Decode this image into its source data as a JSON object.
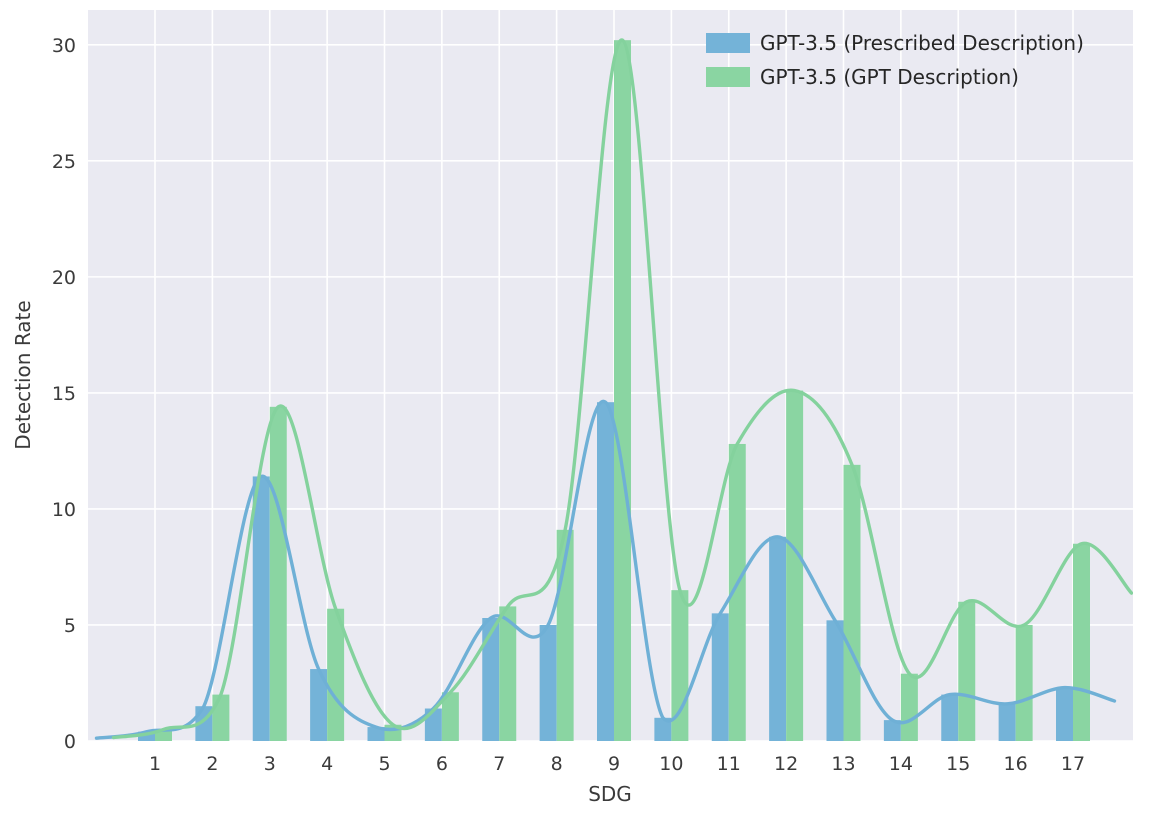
{
  "style": {
    "plot_bg": "#eaeaf2",
    "grid_color": "#ffffff",
    "text_color": "#3b3b3b",
    "legend_text_color": "#262626"
  },
  "chart_data": {
    "type": "bar",
    "overlay": "kde-smooth-curves",
    "title": "",
    "xlabel": "SDG",
    "ylabel": "Detection Rate",
    "categories": [
      "1",
      "2",
      "3",
      "4",
      "5",
      "6",
      "7",
      "8",
      "9",
      "10",
      "11",
      "12",
      "13",
      "14",
      "15",
      "16",
      "17"
    ],
    "series": [
      {
        "name": "GPT-3.5 (Prescribed Description)",
        "color": "#74b3d8",
        "line_color": "#6fb0d6",
        "values": [
          0.4,
          1.5,
          11.4,
          3.1,
          0.6,
          1.4,
          5.3,
          5.0,
          14.6,
          1.0,
          5.5,
          8.8,
          5.2,
          0.9,
          2.0,
          1.6,
          2.3
        ]
      },
      {
        "name": "GPT-3.5 (GPT Description)",
        "color": "#8ad5a2",
        "line_color": "#84d29d",
        "values": [
          0.5,
          2.0,
          14.4,
          5.7,
          0.7,
          2.1,
          5.8,
          9.1,
          30.2,
          6.5,
          12.8,
          15.1,
          11.9,
          2.9,
          6.0,
          5.0,
          8.5
        ]
      }
    ],
    "yticks": [
      0,
      5,
      10,
      15,
      20,
      25,
      30
    ],
    "ylim": [
      0,
      31.5
    ],
    "grid": true,
    "legend_position": "upper right"
  }
}
